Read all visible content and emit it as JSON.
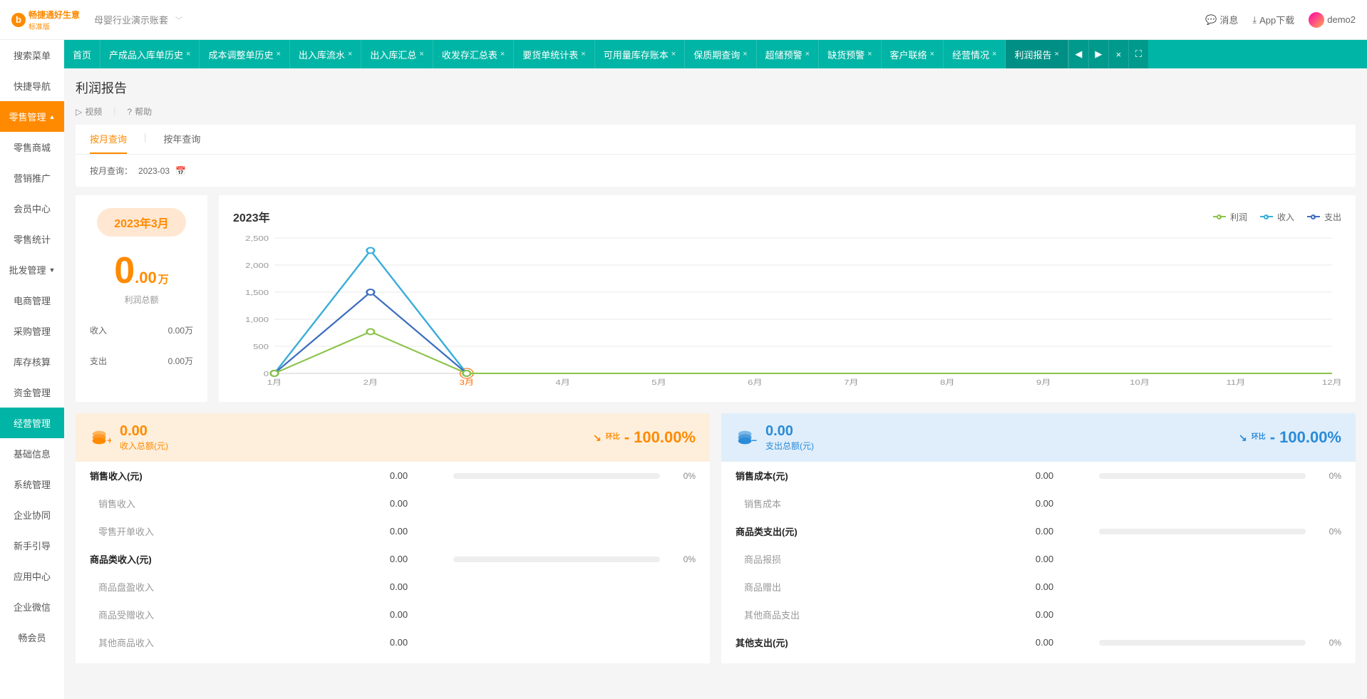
{
  "header": {
    "logo_main": "畅捷通好生意",
    "logo_sub": "标准版",
    "account_selector": "母婴行业演示账套",
    "actions": {
      "message": "消息",
      "app_download": "App下载",
      "user": "demo2"
    }
  },
  "sidebar": [
    {
      "label": "搜索菜单",
      "type": "plain"
    },
    {
      "label": "快捷导航",
      "type": "plain"
    },
    {
      "label": "零售管理",
      "type": "active-orange",
      "chev": "▲"
    },
    {
      "label": "零售商城",
      "type": "plain"
    },
    {
      "label": "营销推广",
      "type": "plain"
    },
    {
      "label": "会员中心",
      "type": "plain"
    },
    {
      "label": "零售统计",
      "type": "plain"
    },
    {
      "label": "批发管理",
      "type": "plain",
      "chev": "▼"
    },
    {
      "label": "电商管理",
      "type": "plain"
    },
    {
      "label": "采购管理",
      "type": "plain"
    },
    {
      "label": "库存核算",
      "type": "plain"
    },
    {
      "label": "资金管理",
      "type": "plain"
    },
    {
      "label": "经营管理",
      "type": "active-teal"
    },
    {
      "label": "基础信息",
      "type": "plain"
    },
    {
      "label": "系统管理",
      "type": "plain"
    },
    {
      "label": "企业协同",
      "type": "plain"
    },
    {
      "label": "新手引导",
      "type": "plain"
    },
    {
      "label": "应用中心",
      "type": "plain"
    },
    {
      "label": "企业微信",
      "type": "plain"
    },
    {
      "label": "畅会员",
      "type": "plain"
    }
  ],
  "tabs": [
    {
      "label": "首页",
      "closable": false
    },
    {
      "label": "产成品入库单历史",
      "closable": true
    },
    {
      "label": "成本调整单历史",
      "closable": true
    },
    {
      "label": "出入库流水",
      "closable": true
    },
    {
      "label": "出入库汇总",
      "closable": true
    },
    {
      "label": "收发存汇总表",
      "closable": true
    },
    {
      "label": "要货单统计表",
      "closable": true
    },
    {
      "label": "可用量库存账本",
      "closable": true
    },
    {
      "label": "保质期查询",
      "closable": true
    },
    {
      "label": "超储预警",
      "closable": true
    },
    {
      "label": "缺货预警",
      "closable": true
    },
    {
      "label": "客户联络",
      "closable": true
    },
    {
      "label": "经营情况",
      "closable": true
    },
    {
      "label": "利润报告",
      "closable": true,
      "active": true
    }
  ],
  "page": {
    "title": "利润报告",
    "help_video": "视频",
    "help": "帮助",
    "subtabs": {
      "monthly": "按月查询",
      "yearly": "按年查询"
    },
    "filter_label": "按月查询：",
    "filter_value": "2023-03"
  },
  "summary": {
    "period_pill": "2023年3月",
    "big_int": "0",
    "big_dec": ".00",
    "big_unit": "万",
    "big_label": "利润总额",
    "income_label": "收入",
    "income_val": "0.00万",
    "expense_label": "支出",
    "expense_val": "0.00万"
  },
  "chart": {
    "title": "2023年",
    "legend": {
      "profit": "利润",
      "income": "收入",
      "expense": "支出"
    },
    "colors": {
      "profit": "#8bc34a",
      "income": "#3aaed8",
      "expense": "#3f6fbf",
      "grid": "#e8e8e8",
      "axis": "#ccc",
      "text": "#999",
      "highlight": "#ff6a00"
    },
    "y_ticks": [
      "0",
      "500",
      "1,000",
      "1,500",
      "2,000",
      "2,500"
    ],
    "x_labels": [
      "1月",
      "2月",
      "3月",
      "4月",
      "5月",
      "6月",
      "7月",
      "8月",
      "9月",
      "10月",
      "11月",
      "12月"
    ],
    "highlight_idx": 2,
    "y_max": 2500,
    "series": {
      "income": [
        0,
        2270,
        0
      ],
      "expense": [
        0,
        1500,
        0
      ],
      "profit": [
        0,
        770,
        0
      ]
    }
  },
  "income_card": {
    "head_val": "0.00",
    "head_label": "收入总额(元)",
    "hb": "环比",
    "pct": "- 100.00%",
    "rows": [
      {
        "label": "销售收入(元)",
        "val": "0.00",
        "main": true,
        "pct": "0%"
      },
      {
        "label": "销售收入",
        "val": "0.00",
        "main": false
      },
      {
        "label": "零售开单收入",
        "val": "0.00",
        "main": false
      },
      {
        "label": "商品类收入(元)",
        "val": "0.00",
        "main": true,
        "pct": "0%"
      },
      {
        "label": "商品盘盈收入",
        "val": "0.00",
        "main": false
      },
      {
        "label": "商品受赠收入",
        "val": "0.00",
        "main": false
      },
      {
        "label": "其他商品收入",
        "val": "0.00",
        "main": false
      }
    ]
  },
  "expense_card": {
    "head_val": "0.00",
    "head_label": "支出总额(元)",
    "hb": "环比",
    "pct": "- 100.00%",
    "rows": [
      {
        "label": "销售成本(元)",
        "val": "0.00",
        "main": true,
        "pct": "0%"
      },
      {
        "label": "销售成本",
        "val": "0.00",
        "main": false
      },
      {
        "label": "商品类支出(元)",
        "val": "0.00",
        "main": true,
        "pct": "0%"
      },
      {
        "label": "商品报损",
        "val": "0.00",
        "main": false
      },
      {
        "label": "商品赠出",
        "val": "0.00",
        "main": false
      },
      {
        "label": "其他商品支出",
        "val": "0.00",
        "main": false
      },
      {
        "label": "其他支出(元)",
        "val": "0.00",
        "main": true,
        "pct": "0%"
      }
    ]
  }
}
